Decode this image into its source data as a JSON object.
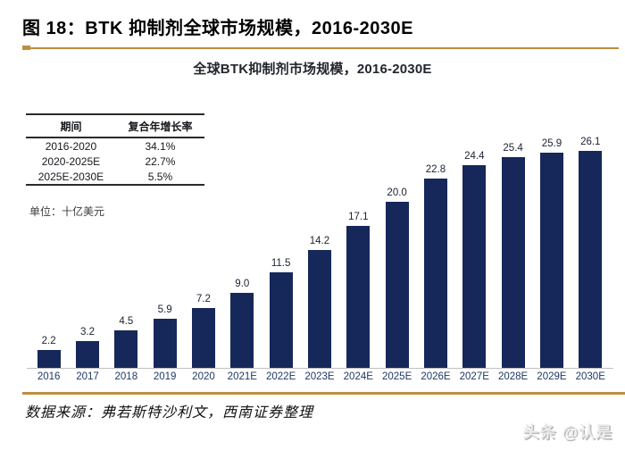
{
  "page": {
    "figure_label": "图 18：BTK 抑制剂全球市场规模，2016-2030E",
    "source_note": "数据来源：弗若斯特沙利文，西南证券整理",
    "watermark": "头条 @认是",
    "unit_label": "单位：十亿美元"
  },
  "cagr_table": {
    "headers": [
      "期间",
      "复合年增长率"
    ],
    "rows": [
      [
        "2016-2020",
        "34.1%"
      ],
      [
        "2020-2025E",
        "22.7%"
      ],
      [
        "2025E-2030E",
        "5.5%"
      ]
    ]
  },
  "chart_data": {
    "type": "bar",
    "title": "全球BTK抑制剂市场规模，2016-2030E",
    "categories": [
      "2016",
      "2017",
      "2018",
      "2019",
      "2020",
      "2021E",
      "2022E",
      "2023E",
      "2024E",
      "2025E",
      "2026E",
      "2027E",
      "2028E",
      "2029E",
      "2030E"
    ],
    "values": [
      2.2,
      3.2,
      4.5,
      5.9,
      7.2,
      9.0,
      11.5,
      14.2,
      17.1,
      20.0,
      22.8,
      24.4,
      25.4,
      25.9,
      26.1
    ],
    "xlabel": "",
    "ylabel": "单位：十亿美元",
    "ylim": [
      0,
      26.1
    ],
    "grid": false,
    "legend_position": "none",
    "data_labels": true,
    "label_decimals": 1
  },
  "colors": {
    "bar": "#16275A",
    "accent_gold": "#BE8E3F",
    "axis_label": "#1F3864",
    "value_label": "#1b2133",
    "axis_line": "#bfbfbf"
  }
}
